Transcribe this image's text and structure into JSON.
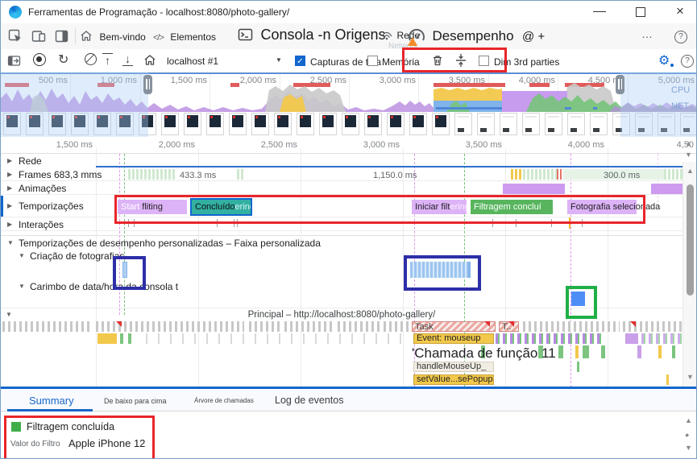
{
  "titlebar": {
    "title": "Ferramentas de Programação - localhost:8080/photo-gallery/",
    "close": "×"
  },
  "tabs": {
    "welcome": "Bem-vindo",
    "elements_icon": "</>",
    "elements": "Elementos",
    "console": "Consola -n Origens",
    "network": "Rede",
    "network_ghost": "Network",
    "performance": "Desempenho",
    "suffix": "@ +",
    "more": "…",
    "help": "?"
  },
  "toolbar": {
    "profile": "localhost #1",
    "screenshots": "Capturas de tela",
    "memory": "Memória",
    "dim": "Dim 3rd parties",
    "help": "?"
  },
  "overview": {
    "ticks": [
      "500 ms",
      "1,000 ms",
      "1,500 ms",
      "2,000 ms",
      "2,500 ms",
      "3,000 ms",
      "3,500 ms",
      "4,000 ms",
      "4,500 ms",
      "5,000 ms"
    ],
    "cpu": "CPU",
    "net": "NET"
  },
  "ruler": {
    "ticks": [
      "1,500 ms",
      "2,000 ms",
      "2,500 ms",
      "3,000 ms",
      "3,500 ms",
      "4,000 ms",
      "4,50"
    ]
  },
  "tracks": {
    "network_label": "Rede",
    "frames_label": "Frames 683,3 mms",
    "frames_durations": {
      "d1": "433.3 ms",
      "d2": "1,150.0 ms",
      "d3": "300.0 ms"
    },
    "animations_label": "Animações",
    "timings_label": "Temporizações",
    "timings": {
      "b1a": "Start",
      "b1b": "fliting",
      "b2a": "Concluído",
      "b2b": "ering",
      "b3a": "Iniciar filt",
      "b3b": "ering",
      "b4": "Filtragem concluí",
      "b5": "Fotografia selecionada"
    },
    "interactions_label": "Interações",
    "custom_header": "Temporizações de desempenho personalizadas – Faixa personalizada",
    "photo_creation_label": "Criação de fotografias",
    "timestamp_label": "Carimbo de data/hora da consola t",
    "main_header": "Principal – http://localhost:8080/photo-gallery/",
    "flame": {
      "task": "Task",
      "task2": "T..",
      "event": "Event: mouseup",
      "big": "'Chamada de função 11",
      "fn1": "handleMouseUp_",
      "fn2": "setValue...sePopup"
    }
  },
  "bottom": {
    "tabs": {
      "summary": "Summary",
      "bottomup": "De baixo para cima",
      "calltree": "Árvore de chamadas",
      "eventlog": "Log de eventos"
    },
    "event_title": "Filtragem concluída",
    "filter_label": "Valor do Filtro",
    "filter_value": "Apple iPhone 12"
  },
  "glyphs": {
    "collapse": "▶",
    "expand": "▼",
    "dropdown": "▼",
    "check": "✓",
    "up_arrow": "↑",
    "down_arrow": "↓",
    "refresh": "↻",
    "gear": "⚙",
    "scroll_up": "▲",
    "scroll_down": "▼",
    "dot": "●"
  },
  "colors": {
    "annotation_red": "#e8252a",
    "annotation_blue": "#2d2fa8",
    "annotation_green": "#1faf46",
    "accent_blue": "#1266cc",
    "timing_purple": "#ddb3f7",
    "timing_teal": "#32b0a2",
    "timing_green": "#58b55e",
    "marker_blue": "#4e8df6",
    "legend_green": "#3fae49"
  }
}
